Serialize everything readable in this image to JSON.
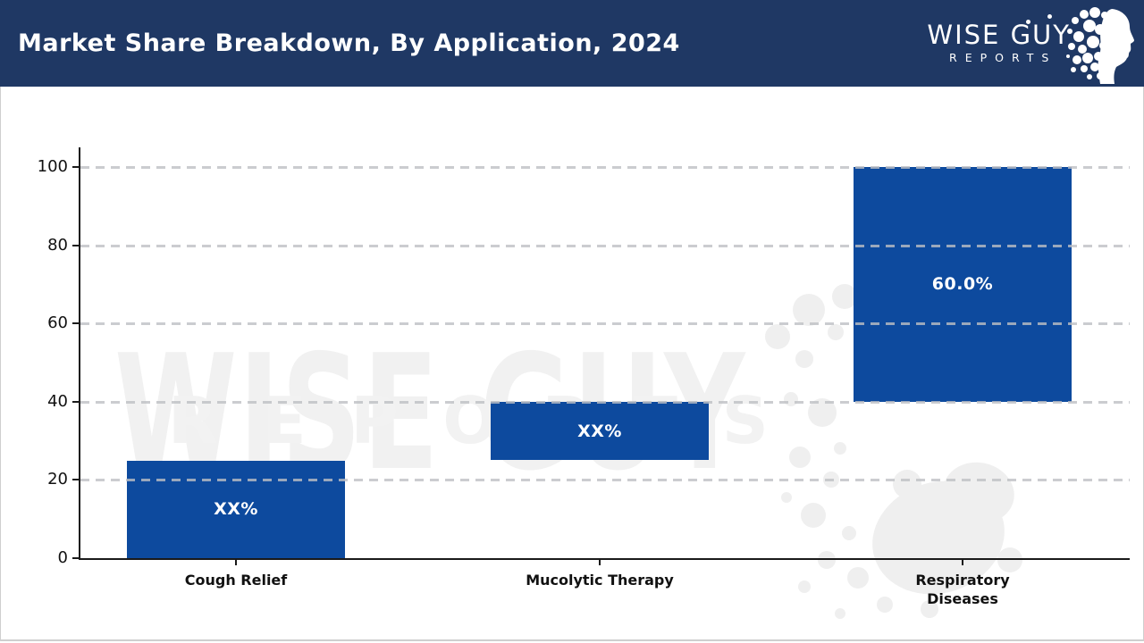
{
  "header": {
    "title": "Market Share Breakdown, By Application, 2024",
    "bg_color": "#1f3864",
    "logo": {
      "line1": "WISE GUY",
      "line2": "REPORTS"
    }
  },
  "watermark": {
    "line1": "WISE GUY",
    "line2": "REPORTS"
  },
  "chart_data": {
    "type": "bar",
    "subtype": "floating-segment (waterfall-style market share)",
    "title": "Market Share Breakdown, By Application, 2024",
    "categories": [
      "Cough Relief",
      "Mucolytic Therapy",
      "Respiratory Diseases"
    ],
    "bars": [
      {
        "category": "Cough Relief",
        "category_lines": [
          "Cough Relief"
        ],
        "from": 0,
        "to": 25,
        "label": "XX%"
      },
      {
        "category": "Mucolytic Therapy",
        "category_lines": [
          "Mucolytic Therapy"
        ],
        "from": 25,
        "to": 40,
        "label": "XX%"
      },
      {
        "category": "Respiratory Diseases",
        "category_lines": [
          "Respiratory",
          "Diseases"
        ],
        "from": 40,
        "to": 100,
        "label": "60.0%"
      }
    ],
    "ylim": [
      0,
      100
    ],
    "yticks": [
      0,
      20,
      40,
      60,
      80,
      100
    ],
    "xlabel": "",
    "ylabel": "",
    "grid": "horizontal dashed gridlines drawn over bars",
    "legend": "none",
    "bar_color": "#0d4a9e",
    "bar_label_color": "#ffffff",
    "axis_color": "#1a1a1a"
  }
}
